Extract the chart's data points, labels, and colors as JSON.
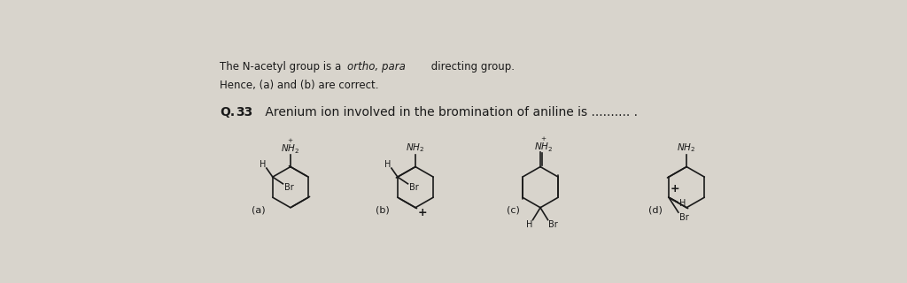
{
  "background_color": "#d8d4cc",
  "text_color": "#1a1a1a",
  "label_a": "(a)",
  "label_b": "(b)",
  "label_c": "(c)",
  "label_d": "(d)"
}
